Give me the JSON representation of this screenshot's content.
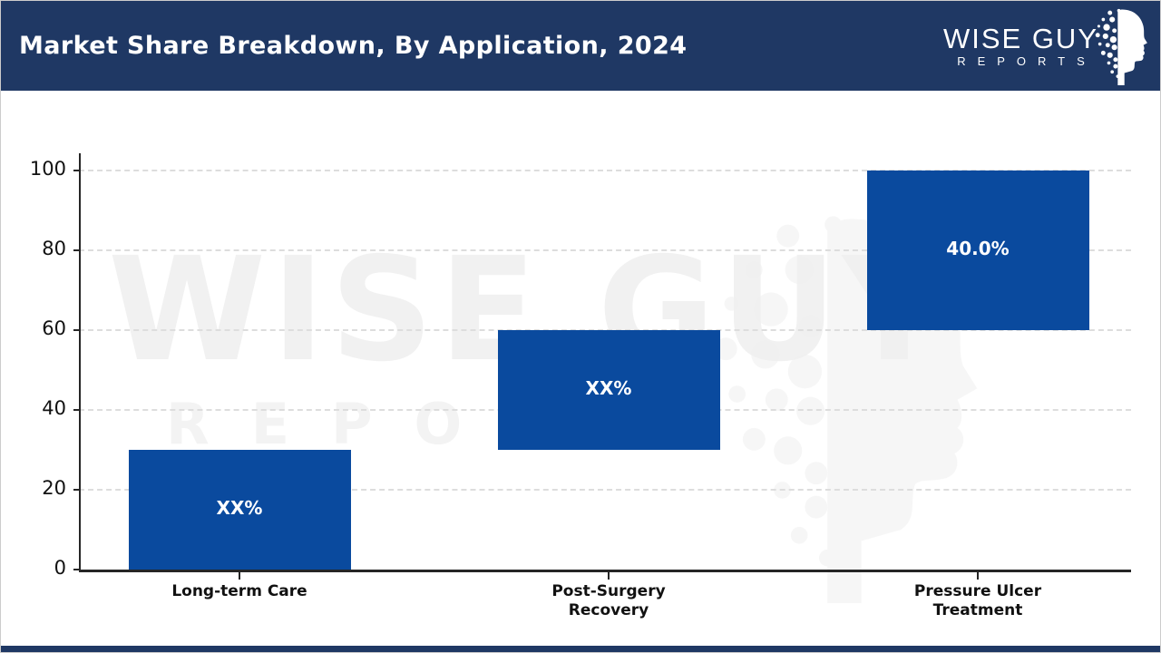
{
  "header": {
    "title": "Market Share Breakdown, By Application, 2024",
    "logo": {
      "line1": "WISE GUY",
      "line2": "REPORTS"
    }
  },
  "watermark": {
    "line1": "WISE GUY",
    "line2": "REPORTS"
  },
  "colors": {
    "header_bg": "#1f3864",
    "bar": "#0a4a9e",
    "grid": "#dddddd",
    "axis": "#262626",
    "bar_label_text": "#ffffff",
    "tick_text": "#111111",
    "watermark_text": "#f1f1f1"
  },
  "chart_data": {
    "type": "bar",
    "subtype": "floating-waterfall",
    "title": "Market Share Breakdown, By Application, 2024",
    "categories": [
      "Long-term Care",
      "Post-Surgery\nRecovery",
      "Pressure Ulcer\nTreatment"
    ],
    "series": [
      {
        "name": "Market Share %",
        "segments": [
          {
            "category": "Long-term Care",
            "start": 0,
            "end": 30,
            "label": "XX%"
          },
          {
            "category": "Post-Surgery Recovery",
            "start": 30,
            "end": 60,
            "label": "XX%"
          },
          {
            "category": "Pressure Ulcer Treatment",
            "start": 60,
            "end": 100,
            "label": "40.0%"
          }
        ]
      }
    ],
    "xlabel": "",
    "ylabel": "",
    "yticks": [
      0,
      20,
      40,
      60,
      80,
      100
    ],
    "ylim": [
      0,
      105
    ],
    "grid": "horizontal-dashed",
    "legend": "none"
  }
}
